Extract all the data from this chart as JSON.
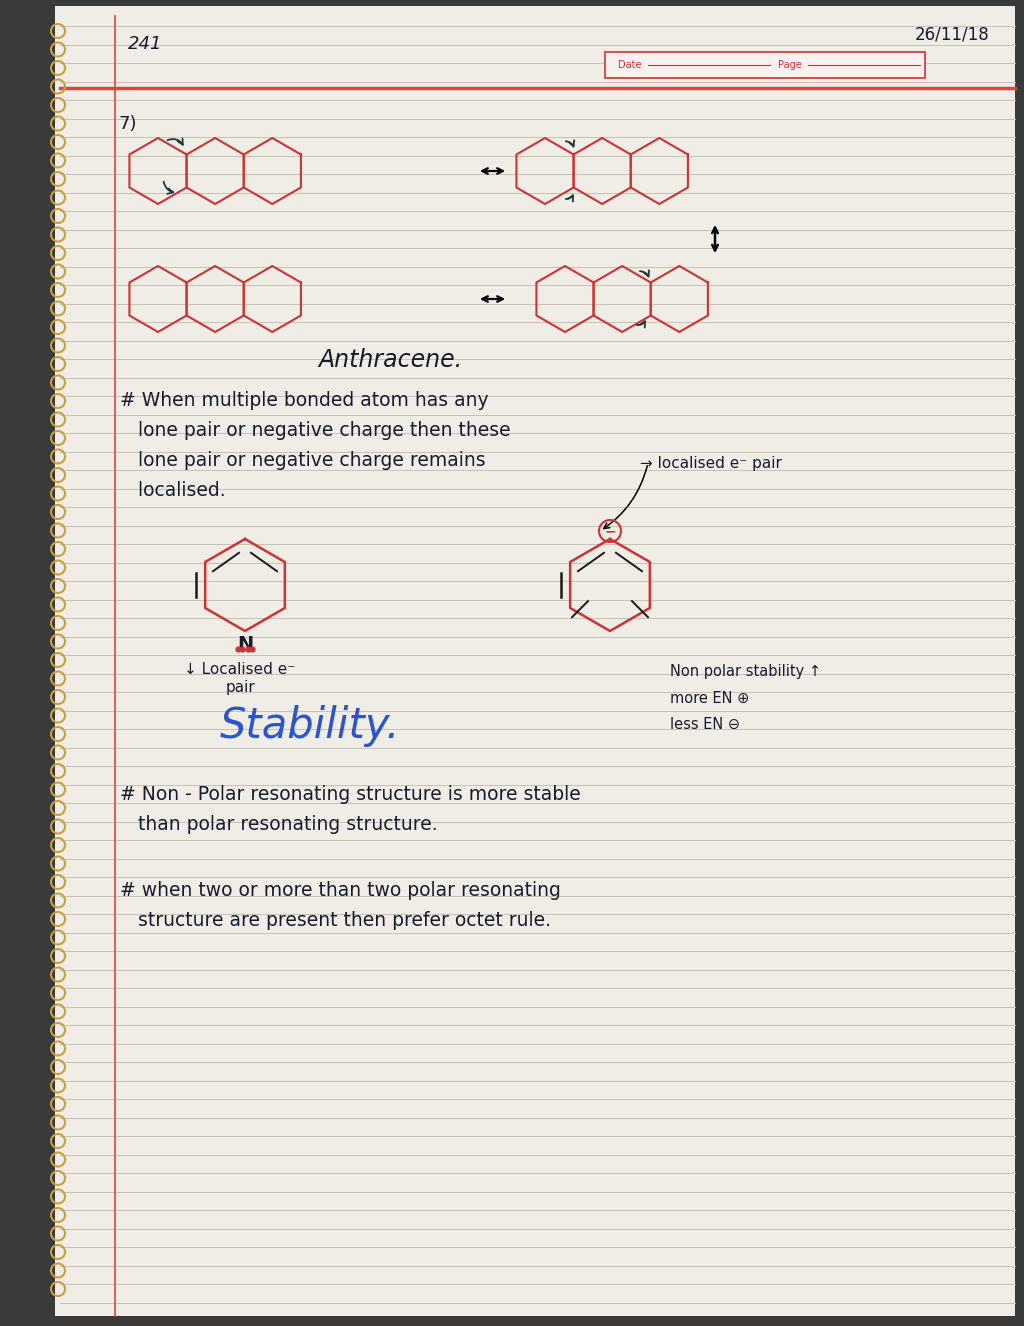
{
  "bg_color": "#3a3a3a",
  "page_color": "#f0ede6",
  "line_color": "#c8c0b0",
  "spiral_color": "#c8a040",
  "dark_color": "#1a1a2e",
  "red_color": "#cc3333",
  "blue_color": "#2255bb",
  "teal_color": "#2a7a6a",
  "page_number_left": "241",
  "page_number_right": "26/11/18",
  "date_label": "Date",
  "page_label": "Page",
  "anthracene_label": "Anthracene.",
  "text1_line1": "# When multiple bonded atom has any",
  "text1_line2": "   lone pair or negative charge then these",
  "text1_line3": "   lone pair or negative charge remains",
  "text1_line4": "   localised.",
  "text1_annotation": "→ localised e⁻ pair",
  "left_mol_label": "↓ Localised e⁻",
  "left_mol_label2": "pair",
  "stability_word": "Stability.",
  "side_note1": "Non polar stability ↑",
  "side_note2": "more EN ⊕",
  "side_note3": "less EN ⊖",
  "text2_line1": "# Non - Polar resonating structure is more stable",
  "text2_line2": "   than polar resonating structure.",
  "text3_line1": "# when two or more than two polar resonating",
  "text3_line2": "   structure are present then prefer octet rule."
}
